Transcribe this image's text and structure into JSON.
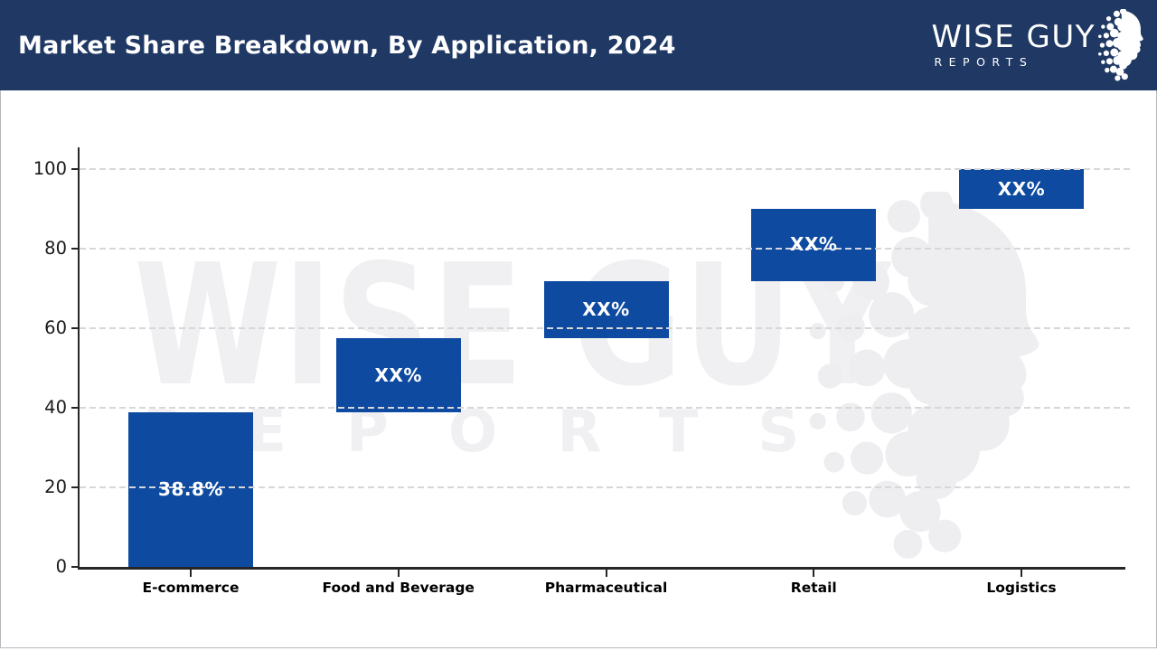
{
  "header": {
    "title": "Market Share Breakdown, By Application, 2024"
  },
  "brand": {
    "wordmark": "WISE GUY",
    "subtitle": "REPORTS"
  },
  "colors": {
    "header_bg": "#1f3864",
    "bar": "#0d4aa0",
    "bar_label": "#ffffff",
    "gridline": "#d7d7d9",
    "axis": "#262626",
    "watermark": "#f0f0f2"
  },
  "chart_data": {
    "type": "bar",
    "subtype": "waterfall",
    "title": "Market Share Breakdown, By Application, 2024",
    "categories": [
      "E-commerce",
      "Food and Beverage",
      "Pharmaceutical",
      "Retail",
      "Logistics"
    ],
    "segments": [
      {
        "start": 0,
        "end": 38.8,
        "label": "38.8%"
      },
      {
        "start": 38.8,
        "end": 57.5,
        "label": "XX%"
      },
      {
        "start": 57.5,
        "end": 71.9,
        "label": "XX%"
      },
      {
        "start": 71.9,
        "end": 90.0,
        "label": "XX%"
      },
      {
        "start": 90.0,
        "end": 100.0,
        "label": "XX%"
      }
    ],
    "xlabel": "",
    "ylabel": "",
    "ylim": [
      0,
      100
    ],
    "yticks": [
      0,
      20,
      40,
      60,
      80,
      100
    ],
    "grid": "horizontal-dashed",
    "legend": "none"
  }
}
